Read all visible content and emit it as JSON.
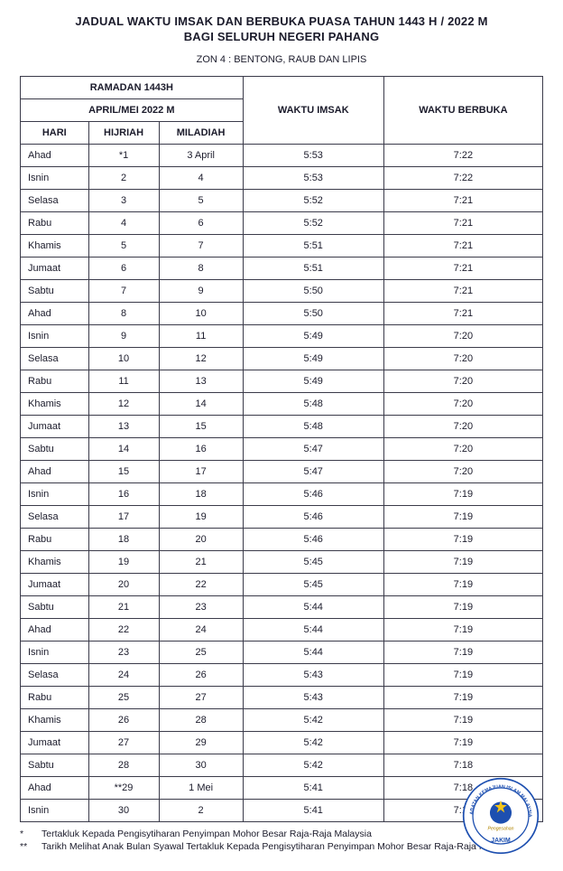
{
  "title_line1": "JADUAL WAKTU IMSAK DAN BERBUKA PUASA TAHUN 1443 H / 2022 M",
  "title_line2": "BAGI SELURUH NEGERI PAHANG",
  "zone_line": "ZON 4 : BENTONG, RAUB DAN LIPIS",
  "headers": {
    "ramadan": "RAMADAN 1443H",
    "calendar": "APRIL/MEI 2022 M",
    "hari": "HARI",
    "hijriah": "HIJRIAH",
    "miladiah": "MILADIAH",
    "imsak": "WAKTU IMSAK",
    "berbuka": "WAKTU BERBUKA"
  },
  "rows": [
    {
      "hari": "Ahad",
      "hij": "*1",
      "mil": "3 April",
      "imsak": "5:53",
      "buka": "7:22"
    },
    {
      "hari": "Isnin",
      "hij": "2",
      "mil": "4",
      "imsak": "5:53",
      "buka": "7:22"
    },
    {
      "hari": "Selasa",
      "hij": "3",
      "mil": "5",
      "imsak": "5:52",
      "buka": "7:21"
    },
    {
      "hari": "Rabu",
      "hij": "4",
      "mil": "6",
      "imsak": "5:52",
      "buka": "7:21"
    },
    {
      "hari": "Khamis",
      "hij": "5",
      "mil": "7",
      "imsak": "5:51",
      "buka": "7:21"
    },
    {
      "hari": "Jumaat",
      "hij": "6",
      "mil": "8",
      "imsak": "5:51",
      "buka": "7:21"
    },
    {
      "hari": "Sabtu",
      "hij": "7",
      "mil": "9",
      "imsak": "5:50",
      "buka": "7:21"
    },
    {
      "hari": "Ahad",
      "hij": "8",
      "mil": "10",
      "imsak": "5:50",
      "buka": "7:21"
    },
    {
      "hari": "Isnin",
      "hij": "9",
      "mil": "11",
      "imsak": "5:49",
      "buka": "7:20"
    },
    {
      "hari": "Selasa",
      "hij": "10",
      "mil": "12",
      "imsak": "5:49",
      "buka": "7:20"
    },
    {
      "hari": "Rabu",
      "hij": "11",
      "mil": "13",
      "imsak": "5:49",
      "buka": "7:20"
    },
    {
      "hari": "Khamis",
      "hij": "12",
      "mil": "14",
      "imsak": "5:48",
      "buka": "7:20"
    },
    {
      "hari": "Jumaat",
      "hij": "13",
      "mil": "15",
      "imsak": "5:48",
      "buka": "7:20"
    },
    {
      "hari": "Sabtu",
      "hij": "14",
      "mil": "16",
      "imsak": "5:47",
      "buka": "7:20"
    },
    {
      "hari": "Ahad",
      "hij": "15",
      "mil": "17",
      "imsak": "5:47",
      "buka": "7:20"
    },
    {
      "hari": "Isnin",
      "hij": "16",
      "mil": "18",
      "imsak": "5:46",
      "buka": "7:19"
    },
    {
      "hari": "Selasa",
      "hij": "17",
      "mil": "19",
      "imsak": "5:46",
      "buka": "7:19"
    },
    {
      "hari": "Rabu",
      "hij": "18",
      "mil": "20",
      "imsak": "5:46",
      "buka": "7:19"
    },
    {
      "hari": "Khamis",
      "hij": "19",
      "mil": "21",
      "imsak": "5:45",
      "buka": "7:19"
    },
    {
      "hari": "Jumaat",
      "hij": "20",
      "mil": "22",
      "imsak": "5:45",
      "buka": "7:19"
    },
    {
      "hari": "Sabtu",
      "hij": "21",
      "mil": "23",
      "imsak": "5:44",
      "buka": "7:19"
    },
    {
      "hari": "Ahad",
      "hij": "22",
      "mil": "24",
      "imsak": "5:44",
      "buka": "7:19"
    },
    {
      "hari": "Isnin",
      "hij": "23",
      "mil": "25",
      "imsak": "5:44",
      "buka": "7:19"
    },
    {
      "hari": "Selasa",
      "hij": "24",
      "mil": "26",
      "imsak": "5:43",
      "buka": "7:19"
    },
    {
      "hari": "Rabu",
      "hij": "25",
      "mil": "27",
      "imsak": "5:43",
      "buka": "7:19"
    },
    {
      "hari": "Khamis",
      "hij": "26",
      "mil": "28",
      "imsak": "5:42",
      "buka": "7:19"
    },
    {
      "hari": "Jumaat",
      "hij": "27",
      "mil": "29",
      "imsak": "5:42",
      "buka": "7:19"
    },
    {
      "hari": "Sabtu",
      "hij": "28",
      "mil": "30",
      "imsak": "5:42",
      "buka": "7:18"
    },
    {
      "hari": "Ahad",
      "hij": "**29",
      "mil": "1 Mei",
      "imsak": "5:41",
      "buka": "7:18"
    },
    {
      "hari": "Isnin",
      "hij": "30",
      "mil": "2",
      "imsak": "5:41",
      "buka": "7:18"
    }
  ],
  "footnotes": {
    "n1_star": "*",
    "n1_text": "Tertakluk Kepada Pengisytiharan Penyimpan Mohor Besar Raja-Raja Malaysia",
    "n2_star": "**",
    "n2_text": "Tarikh Melihat Anak Bulan Syawal  Tertakluk Kepada Pengisytiharan Penyimpan Mohor Besar Raja-Raja Malaysia"
  },
  "seal": {
    "outer_text_top": "JABATAN KEMAJUAN ISLAM MALAYSIA",
    "bottom_label": "JAKIM",
    "ring_color": "#1d4fb0",
    "inner_color": "#1d4fb0",
    "background": "#ffffff",
    "signature_text": "Pengesahan"
  },
  "style": {
    "border_color": "#3b3b4a",
    "font_family": "Arial",
    "title_fontsize": 13,
    "body_fontsize": 11,
    "footnote_fontsize": 10.5,
    "background_color": "#ffffff",
    "text_color": "#1b1b2b"
  }
}
